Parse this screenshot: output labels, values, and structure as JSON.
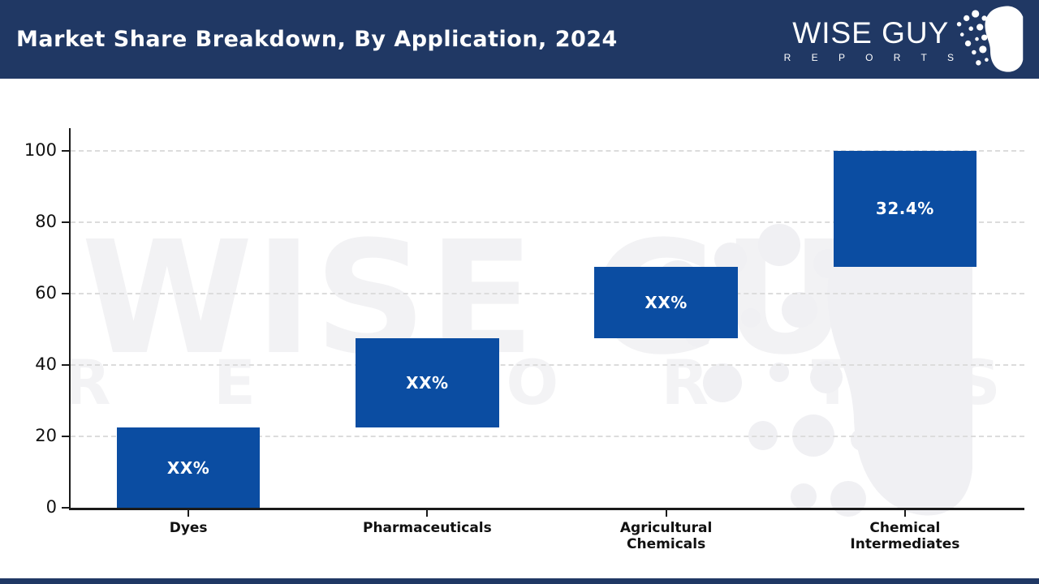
{
  "header": {
    "title": "Market Share Breakdown, By Application, 2024",
    "logo_brand": "WISE GUY",
    "logo_sub": "R E P O R T S"
  },
  "watermark": {
    "brand": "WISE GUY",
    "sub": "R E P O R T S"
  },
  "colors": {
    "header_bg": "#203864",
    "bar": "#0b4da2",
    "grid": "#dcdcdc",
    "axis": "#1a1a1a",
    "bar_label_text": "#ffffff",
    "watermark": "#f2f2f4"
  },
  "chart_data": {
    "type": "bar",
    "subtype": "floating-waterfall",
    "title": "Market Share Breakdown, By Application, 2024",
    "categories": [
      "Dyes",
      "Pharmaceuticals",
      "Agricultural Chemicals",
      "Chemical Intermediates"
    ],
    "category_label_lines": [
      [
        "Dyes"
      ],
      [
        "Pharmaceuticals"
      ],
      [
        "Agricultural",
        "Chemicals"
      ],
      [
        "Chemical",
        "Intermediates"
      ]
    ],
    "segments": [
      {
        "category": "Dyes",
        "start": 0,
        "end": 22.5,
        "label": "XX%"
      },
      {
        "category": "Pharmaceuticals",
        "start": 22.5,
        "end": 47.5,
        "label": "XX%"
      },
      {
        "category": "Agricultural Chemicals",
        "start": 47.5,
        "end": 67.6,
        "label": "XX%"
      },
      {
        "category": "Chemical Intermediates",
        "start": 67.6,
        "end": 100,
        "label": "32.4%"
      }
    ],
    "yticks": [
      0,
      20,
      40,
      60,
      80,
      100
    ],
    "ylim": [
      0,
      106
    ],
    "xlabel": "",
    "ylabel": "",
    "grid": "horizontal-dashed",
    "legend": "none",
    "bar_color": "#0b4da2"
  }
}
